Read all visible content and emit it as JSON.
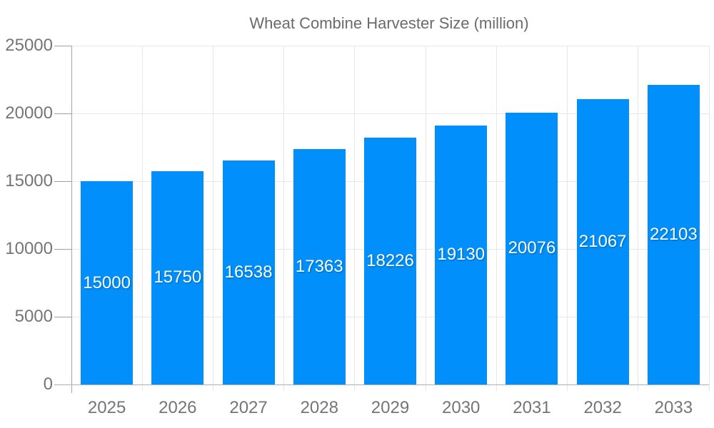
{
  "chart_data": {
    "type": "bar",
    "title": "Wheat Combine Harvester Size (million)",
    "categories": [
      "2025",
      "2026",
      "2027",
      "2028",
      "2029",
      "2030",
      "2031",
      "2032",
      "2033"
    ],
    "values": [
      15000,
      15750,
      16538,
      17363,
      18226,
      19130,
      20076,
      21067,
      22103
    ],
    "data_labels": [
      "15000",
      "15750",
      "16538",
      "17363",
      "18226",
      "19130",
      "20076",
      "21067",
      "22103"
    ],
    "xlabel": "",
    "ylabel": "",
    "ylim": [
      0,
      25000
    ],
    "yticks": [
      0,
      5000,
      10000,
      15000,
      20000,
      25000
    ],
    "ytick_labels": [
      "0",
      "5000",
      "10000",
      "15000",
      "20000",
      "25000"
    ],
    "grid": true,
    "legend_position": "top",
    "colors": {
      "bar": "#008FFB",
      "grid": "#e7e7e7",
      "axis_line": "#b0b0b0",
      "axis_text": "#757575",
      "legend_text": "#6b6b6b",
      "data_label_text": "#ffffff"
    }
  },
  "legend": {
    "label": "Wheat Combine Harvester Size (million)"
  }
}
